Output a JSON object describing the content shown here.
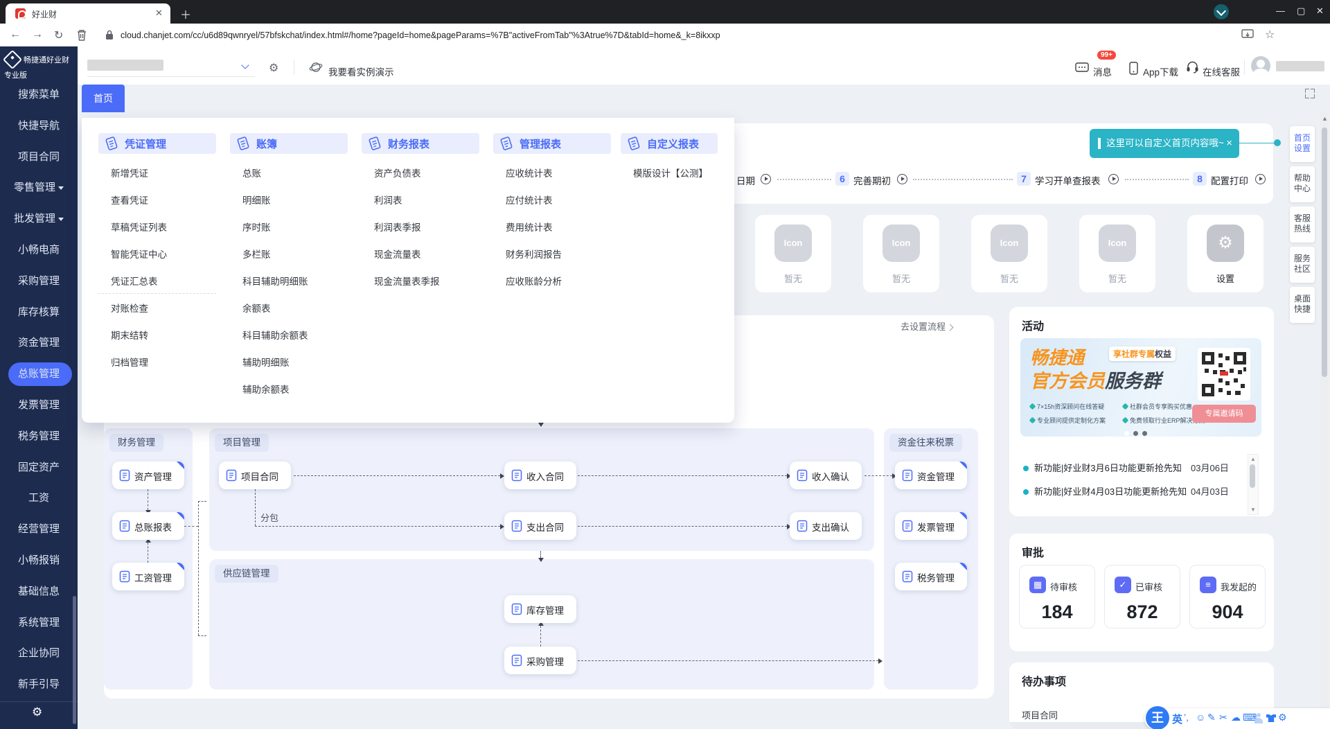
{
  "browser": {
    "tab_title": "好业财",
    "url": "cloud.chanjet.com/cc/u6d89qwnryel/57bfskchat/index.html#/home?pageId=home&pageParams=%7B\"activeFromTab\"%3Atrue%7D&tabId=home&_k=8ikxxp"
  },
  "header": {
    "brand_line1": "畅捷通好业财",
    "brand_line2": "专业版",
    "demo_label": "我要看实例演示",
    "messages_label": "消息",
    "messages_badge": "99+",
    "app_download_label": "App下载",
    "support_label": "在线客服"
  },
  "home_tab": "首页",
  "sidebar": {
    "items": [
      {
        "label": "搜索菜单"
      },
      {
        "label": "快捷导航"
      },
      {
        "label": "项目合同"
      },
      {
        "label": "零售管理",
        "arrow": true
      },
      {
        "label": "批发管理",
        "arrow": true
      },
      {
        "label": "小畅电商"
      },
      {
        "label": "采购管理"
      },
      {
        "label": "库存核算"
      },
      {
        "label": "资金管理"
      },
      {
        "label": "总账管理",
        "active": true
      },
      {
        "label": "发票管理"
      },
      {
        "label": "税务管理"
      },
      {
        "label": "固定资产"
      },
      {
        "label": "工资"
      },
      {
        "label": "经营管理"
      },
      {
        "label": "小畅报销"
      },
      {
        "label": "基础信息"
      },
      {
        "label": "系统管理"
      },
      {
        "label": "企业协同"
      },
      {
        "label": "新手引导"
      }
    ]
  },
  "menu": {
    "columns": [
      {
        "title": "凭证管理",
        "groups": [
          [
            "新增凭证",
            "查看凭证",
            "草稿凭证列表",
            "智能凭证中心",
            "凭证汇总表"
          ],
          [
            "对账检查",
            "期末结转",
            "归档管理"
          ]
        ]
      },
      {
        "title": "账簿",
        "groups": [
          [
            "总账",
            "明细账",
            "序时账",
            "多栏账",
            "科目辅助明细账",
            "余额表",
            "科目辅助余额表",
            "辅助明细账",
            "辅助余额表"
          ]
        ]
      },
      {
        "title": "财务报表",
        "groups": [
          [
            "资产负债表",
            "利润表",
            "利润表季报",
            "现金流量表",
            "现金流量表季报"
          ]
        ]
      },
      {
        "title": "管理报表",
        "groups": [
          [
            "应收统计表",
            "应付统计表",
            "费用统计表",
            "财务利润报告",
            "应收账龄分析"
          ]
        ]
      },
      {
        "title": "自定义报表",
        "groups": [
          [
            "模版设计【公测】"
          ]
        ]
      }
    ]
  },
  "onboarding": {
    "partial_step_label": "日期",
    "steps": [
      {
        "num": "6",
        "label": "完善期初"
      },
      {
        "num": "7",
        "label": "学习开单查报表"
      },
      {
        "num": "8",
        "label": "配置打印"
      }
    ]
  },
  "notice": {
    "text": "这里可以自定义首页内容哦~",
    "close": "×"
  },
  "shortcuts": {
    "placeholder": "Icon",
    "cards": [
      {
        "label": "暂无"
      },
      {
        "label": "暂无"
      },
      {
        "label": "暂无"
      },
      {
        "label": "暂无"
      },
      {
        "label": "设置",
        "gear": true
      }
    ]
  },
  "flowchart": {
    "setup_link": "去设置流程",
    "edge_label": "分包",
    "sections": {
      "finance": "财务管理",
      "project": "项目管理",
      "supply": "供应链管理",
      "fund": "资金往来税票"
    },
    "nodes": [
      {
        "id": "asset",
        "label": "资产管理",
        "badge": true
      },
      {
        "id": "ledger-report",
        "label": "总账报表",
        "badge": true
      },
      {
        "id": "payroll",
        "label": "工资管理",
        "badge": true
      },
      {
        "id": "project-contract",
        "label": "项目合同"
      },
      {
        "id": "income-contract",
        "label": "收入合同"
      },
      {
        "id": "expense-contract",
        "label": "支出合同"
      },
      {
        "id": "income-confirm",
        "label": "收入确认"
      },
      {
        "id": "expense-confirm",
        "label": "支出确认"
      },
      {
        "id": "inventory",
        "label": "库存管理"
      },
      {
        "id": "purchase",
        "label": "采购管理"
      },
      {
        "id": "fund",
        "label": "资金管理",
        "badge": true
      },
      {
        "id": "invoice",
        "label": "发票管理",
        "badge": true
      },
      {
        "id": "tax",
        "label": "税务管理",
        "badge": true
      }
    ]
  },
  "activity": {
    "title": "活动",
    "banner": {
      "line1": "畅捷通",
      "line2_orange": "官方会员",
      "line2_dark": "服务群",
      "badge_orange": "享社群专属",
      "badge_dark": "权益",
      "bullets": [
        "7×15h资深顾问在线答疑",
        "社群会员专享购买优惠",
        "专业顾问提供定制化方案",
        "免费领取行业ERP解决方案"
      ],
      "qr_label": "专属邀请码"
    },
    "news": [
      {
        "text": "新功能|好业财3月6日功能更新抢先知",
        "date": "03月06日"
      },
      {
        "text": "新功能|好业财4月03日功能更新抢先知",
        "date": "04月03日"
      }
    ]
  },
  "approval": {
    "title": "审批",
    "stats": [
      {
        "label": "待审核",
        "value": "184",
        "icon": "calendar-pending-icon",
        "glyph": "▦"
      },
      {
        "label": "已审核",
        "value": "872",
        "icon": "clipboard-check-icon",
        "glyph": "✓"
      },
      {
        "label": "我发起的",
        "value": "904",
        "icon": "document-icon",
        "glyph": "≡"
      }
    ]
  },
  "todo": {
    "title": "待办事项",
    "items": [
      "项目合同"
    ]
  },
  "side_toolbar": {
    "items": [
      {
        "line1": "首页",
        "line2": "设置",
        "active": true
      },
      {
        "line1": "帮助",
        "line2": "中心"
      },
      {
        "line1": "客服",
        "line2": "热线"
      },
      {
        "line1": "服务",
        "line2": "社区"
      },
      {
        "line1": "桌面",
        "line2": "快捷"
      }
    ]
  },
  "ime": {
    "logo": "王",
    "icons": [
      {
        "glyph": "英",
        "name": "english-mode",
        "cls": "ime-en"
      },
      {
        "glyph": "’,",
        "name": "punctuation-mode"
      },
      {
        "glyph": "☺",
        "name": "emoji-icon"
      },
      {
        "glyph": "✎",
        "name": "pencil-icon"
      },
      {
        "glyph": "✂",
        "name": "scissors-icon"
      },
      {
        "glyph": "☁",
        "name": "cloud-icon"
      },
      {
        "glyph": "⌨",
        "name": "keyboard-icon"
      },
      {
        "glyph": "",
        "name": "person-icon",
        "custom": "person"
      },
      {
        "glyph": "",
        "name": "shirt-icon",
        "custom": "shirt"
      },
      {
        "glyph": "⚙",
        "name": "ime-gear-icon"
      }
    ]
  },
  "colors": {
    "accent": "#4a6cf8",
    "sidebar": "#1d2b4f",
    "teal": "#2ab4c6",
    "badge_red": "#f5483b",
    "banner_orange": "#f7941e"
  }
}
